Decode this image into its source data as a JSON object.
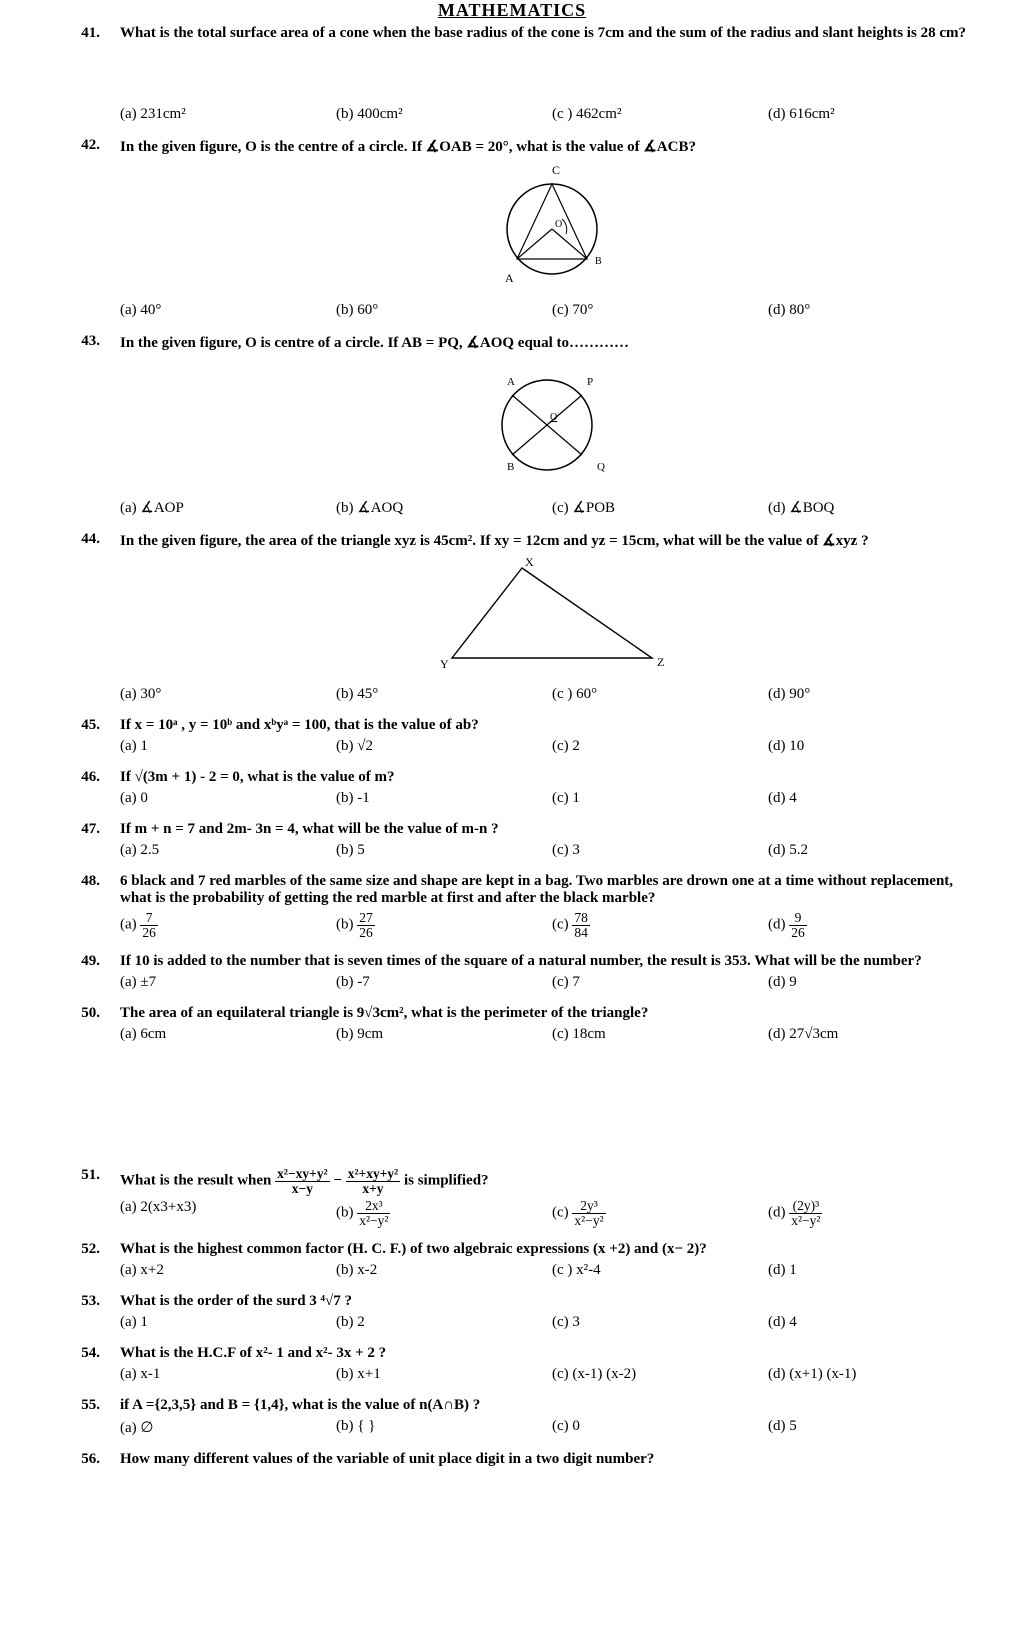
{
  "header": "MATHEMATICS",
  "questions": [
    {
      "num": "41.",
      "text": "What is the total surface area of a cone when the base radius of the cone is 7cm and the sum of the radius and slant heights is 28 cm?",
      "options": {
        "a": "(a) 231cm²",
        "b": "(b) 400cm²",
        "c": "(c ) 462cm²",
        "d": "(d) 616cm²"
      },
      "figure": null
    },
    {
      "num": "42.",
      "text": "In the given figure, O is the centre of a circle. If ∡OAB = 20°, what is the value of ∡ACB?",
      "options": {
        "a": "(a) 40°",
        "b": "(b) 60°",
        "c": "(c) 70°",
        "d": "(d) 80°"
      },
      "figure": "circle_oab"
    },
    {
      "num": "43.",
      "text": "In the given figure, O is centre of a circle. If AB = PQ, ∡AOQ equal to…………",
      "options": {
        "a": "(a) ∡AOP",
        "b": "(b) ∡AOQ",
        "c": "(c) ∡POB",
        "d": "(d) ∡BOQ"
      },
      "figure": "circle_abpq"
    },
    {
      "num": "44.",
      "text": "In the given figure, the area of the triangle xyz is 45cm². If xy = 12cm and yz = 15cm, what will be the value of ∡xyz ?",
      "options": {
        "a": "(a) 30°",
        "b": "(b) 45°",
        "c": "(c ) 60°",
        "d": "(d) 90°"
      },
      "figure": "triangle_xyz"
    },
    {
      "num": "45.",
      "text": "If x = 10ᵃ , y = 10ᵇ and xᵇyᵃ = 100, that is the value of ab?",
      "options": {
        "a": "(a) 1",
        "b": "(b) √2",
        "c": "(c) 2",
        "d": "(d) 10"
      },
      "figure": null
    },
    {
      "num": "46.",
      "text": "If √(3m + 1) - 2 = 0, what is the value of m?",
      "options": {
        "a": "(a) 0",
        "b": "(b) -1",
        "c": "(c) 1",
        "d": "(d) 4"
      },
      "figure": null
    },
    {
      "num": "47.",
      "text": "If m + n  = 7 and 2m- 3n = 4, what will be the value of m-n ?",
      "options": {
        "a": "(a) 2.5",
        "b": "(b) 5",
        "c": "(c) 3",
        "d": "(d) 5.2"
      },
      "figure": null
    },
    {
      "num": "48.",
      "text": "6 black and 7 red marbles of the same size  and shape are kept in a bag. Two marbles are drown one at a time without replacement, what is the probability of getting the red marble at first and after the black marble?",
      "options_frac": {
        "a": {
          "prefix": "(a)",
          "num": "7",
          "den": "26"
        },
        "b": {
          "prefix": "(b)",
          "num": "27",
          "den": "26"
        },
        "c": {
          "prefix": "(c)",
          "num": "78",
          "den": "84"
        },
        "d": {
          "prefix": "(d)",
          "num": "9",
          "den": "26"
        }
      },
      "figure": null
    },
    {
      "num": "49.",
      "text": "If 10 is added to the number that is seven times of the square of a natural number, the result is 353. What will be the number?",
      "options": {
        "a": "(a) ±7",
        "b": "(b) -7",
        "c": "(c) 7",
        "d": "(d) 9"
      },
      "figure": null
    },
    {
      "num": "50.",
      "text": "The area of an equilateral triangle is 9√3cm², what is the perimeter of the triangle?",
      "options": {
        "a": "(a) 6cm",
        "b": "(b) 9cm",
        "c": "(c) 18cm",
        "d": "(d) 27√3cm"
      },
      "figure": null
    },
    {
      "num": "51.",
      "text_html": "What is the result when <span class='frac'><span class='num'>x²−xy+y²</span><span class='den'>x−y</span></span> − <span class='frac'><span class='num'>x²+xy+y²</span><span class='den'>x+y</span></span> is simplified?",
      "options_html": {
        "a": "(a) 2(x3+x3)",
        "b": "(b) <span class='frac'><span class='num'>2x³</span><span class='den'>x²−y²</span></span>",
        "c": "(c) <span class='frac'><span class='num'>2y³</span><span class='den'>x²−y²</span></span>",
        "d": "(d) <span class='frac'><span class='num'>(2y)³</span><span class='den'>x²−y²</span></span>"
      },
      "figure": null
    },
    {
      "num": "52.",
      "text": "What is the highest common factor (H. C. F.) of two algebraic expressions (x +2) and (x− 2)?",
      "options": {
        "a": "(a) x+2",
        "b": "(b) x-2",
        "c": "(c ) x²-4",
        "d": "(d) 1"
      },
      "figure": null
    },
    {
      "num": "53.",
      "text": "What is the order of the surd  3 ⁴√7 ?",
      "options": {
        "a": "(a) 1",
        "b": "(b) 2",
        "c": "(c) 3",
        "d": "(d) 4"
      },
      "figure": null
    },
    {
      "num": "54.",
      "text": "What is the H.C.F of x²- 1 and x²- 3x + 2 ?",
      "options": {
        "a": "(a) x-1",
        "b": "(b) x+1",
        "c": "(c) (x-1) (x-2)",
        "d": "(d) (x+1) (x-1)"
      },
      "figure": null
    },
    {
      "num": "55.",
      "text": "if A ={2,3,5} and B = {1,4}, what is the value of n(A∩B) ?",
      "options": {
        "a": "(a) ∅",
        "b": "(b) {  }",
        "c": "(c) 0",
        "d": "(d) 5"
      },
      "figure": null
    },
    {
      "num": "56.",
      "text": "How many different values of the variable of unit place digit in a two digit number?",
      "options": null,
      "figure": null
    }
  ]
}
